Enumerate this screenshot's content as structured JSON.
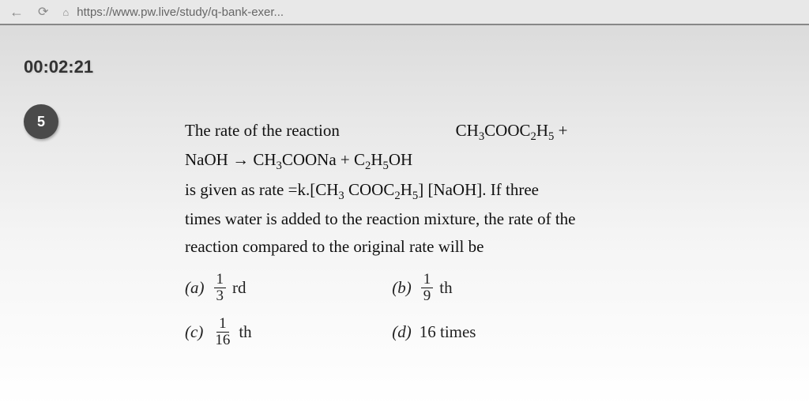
{
  "browser": {
    "url": "https://www.pw.live/study/q-bank-exer..."
  },
  "timer": "00:02:21",
  "question_number": "5",
  "question": {
    "line1_intro": "The rate of the reaction",
    "line1_formula": "CH₃COOC₂H₅ +",
    "line2_formula": "NaOH → CH₃COONa + C₂H₅OH",
    "line3": "is given as rate =k.[CH₃ COOC₂H₅] [NaOH]. If three",
    "line4": "times water is added to the reaction mixture, the rate of the",
    "line5": "reaction compared to the original rate will be"
  },
  "options": {
    "a": {
      "label": "(a)",
      "num": "1",
      "den": "3",
      "suffix": "rd"
    },
    "b": {
      "label": "(b)",
      "num": "1",
      "den": "9",
      "suffix": "th"
    },
    "c": {
      "label": "(c)",
      "num": "1",
      "den": "16",
      "suffix": "th"
    },
    "d": {
      "label": "(d)",
      "text": "16 times"
    }
  }
}
